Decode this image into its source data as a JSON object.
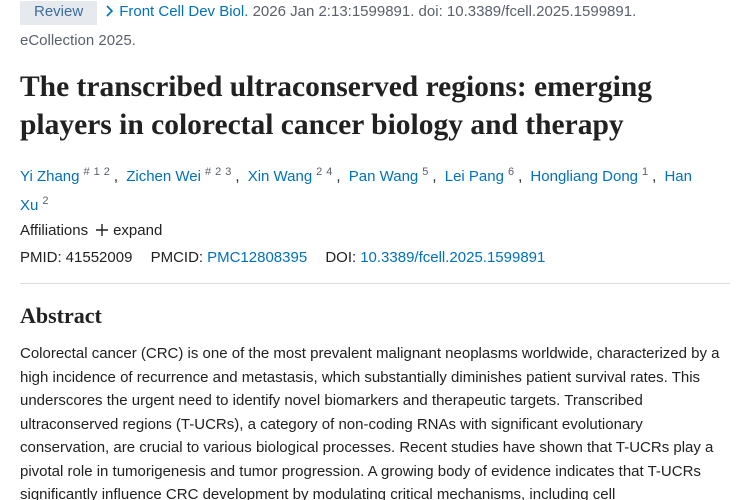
{
  "badge": "Review",
  "citation": {
    "journal": "Front Cell Dev Biol.",
    "details": "2026 Jan 2:13:1599891. doi: 10.3389/fcell.2025.1599891.",
    "ecollection": "eCollection 2025."
  },
  "title": "The transcribed ultraconserved regions: emerging players in colorectal cancer biology and therapy",
  "authors": [
    {
      "name": "Yi Zhang",
      "sup": [
        "#",
        "1",
        "2"
      ]
    },
    {
      "name": "Zichen Wei",
      "sup": [
        "#",
        "2",
        "3"
      ]
    },
    {
      "name": "Xin Wang",
      "sup": [
        "2",
        "4"
      ]
    },
    {
      "name": "Pan Wang",
      "sup": [
        "5"
      ]
    },
    {
      "name": "Lei Pang",
      "sup": [
        "6"
      ]
    },
    {
      "name": "Hongliang Dong",
      "sup": [
        "1"
      ]
    },
    {
      "name": "Han Xu",
      "sup": [
        "2"
      ]
    }
  ],
  "affiliations": {
    "label": "Affiliations",
    "toggle": "expand"
  },
  "ids": {
    "pmid_label": "PMID:",
    "pmid": "41552009",
    "pmcid_label": "PMCID:",
    "pmcid": "PMC12808395",
    "doi_label": "DOI:",
    "doi": "10.3389/fcell.2025.1599891"
  },
  "abstract": {
    "heading": "Abstract",
    "text": "Colorectal cancer (CRC) is one of the most prevalent malignant neoplasms worldwide, characterized by a high incidence of recurrence and metastasis, which substantially diminishes patient survival rates. This underscores the urgent need to identify novel biomarkers and therapeutic targets. Transcribed ultraconserved regions (T-UCRs), a category of non-coding RNAs with significant evolutionary conservation, are crucial to various biological processes. Recent studies have shown that T-UCRs play a pivotal role in tumorigenesis and tumor progression. A growing body of evidence indicates that T-UCRs significantly influence CRC development by modulating critical mechanisms, including cell"
  }
}
